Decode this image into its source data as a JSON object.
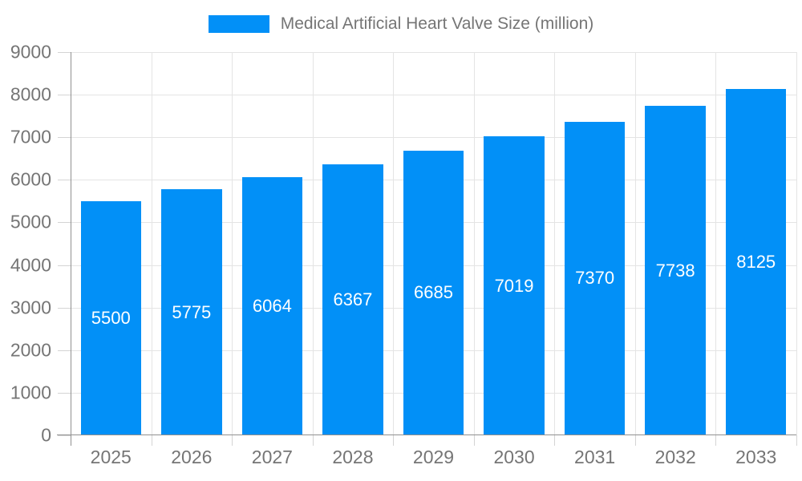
{
  "chart_data": {
    "type": "bar",
    "title": "Medical Artificial Heart Valve Size (million)",
    "legend": {
      "position": "top",
      "entries": [
        "Medical Artificial Heart Valve Size (million)"
      ]
    },
    "categories": [
      "2025",
      "2026",
      "2027",
      "2028",
      "2029",
      "2030",
      "2031",
      "2032",
      "2033"
    ],
    "series": [
      {
        "name": "Medical Artificial Heart Valve Size (million)",
        "values": [
          5500,
          5775,
          6064,
          6367,
          6685,
          7019,
          7370,
          7738,
          8125
        ]
      }
    ],
    "value_labels_visible": true,
    "xlabel": "",
    "ylabel": "",
    "ylim": [
      0,
      9000
    ],
    "ytick_step": 1000,
    "yticks": [
      0,
      1000,
      2000,
      3000,
      4000,
      5000,
      6000,
      7000,
      8000,
      9000
    ],
    "grid": true,
    "bar_width_ratio": 0.75,
    "colors": {
      "bar": "#0290f7",
      "bar_value_label": "#ffffff",
      "axis_text": "#757575",
      "legend_text": "#757575",
      "gridline": "#e4e4e4",
      "tick": "#d4d4d4",
      "axis_line": "#909090",
      "background": "#ffffff"
    }
  }
}
